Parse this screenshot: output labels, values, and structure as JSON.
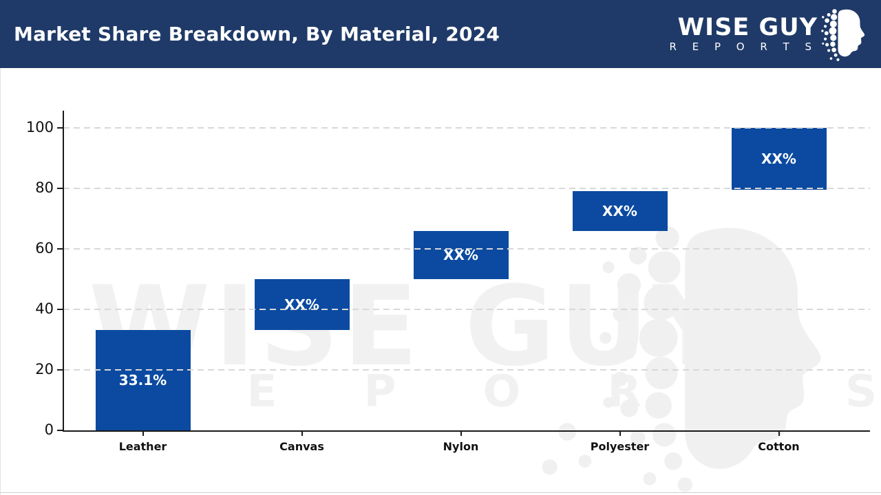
{
  "header": {
    "title": "Market Share Breakdown, By Material, 2024",
    "logo": {
      "name": "Wise Guy Reports",
      "line1": "WISE GUY",
      "line2": "R E P O R T S"
    }
  },
  "watermark": {
    "line1": "WISE GUY",
    "line2": "R E P O R T S"
  },
  "colors": {
    "header_bg": "#1f3a68",
    "bar": "#0b4aa0",
    "grid": "#d8d8d8",
    "axis": "#111111",
    "bar_label": "#ffffff",
    "watermark": "#f1f1f1"
  },
  "chart_data": {
    "type": "bar",
    "subtype": "waterfall",
    "title": "Market Share Breakdown, By Material, 2024",
    "categories": [
      "Leather",
      "Canvas",
      "Nylon",
      "Polyester",
      "Cotton"
    ],
    "segments": [
      {
        "category": "Leather",
        "start": 0,
        "end": 33.1,
        "label": "33.1%"
      },
      {
        "category": "Canvas",
        "start": 33.1,
        "end": 50,
        "label": "XX%"
      },
      {
        "category": "Nylon",
        "start": 50,
        "end": 66,
        "label": "XX%"
      },
      {
        "category": "Polyester",
        "start": 66,
        "end": 79,
        "label": "XX%"
      },
      {
        "category": "Cotton",
        "start": 79.5,
        "end": 100,
        "label": "XX%"
      }
    ],
    "ylim": [
      0,
      100
    ],
    "yticks": [
      0,
      20,
      40,
      60,
      80,
      100
    ],
    "xlabel": "",
    "ylabel": "",
    "grid": "horizontal-dashed",
    "legend": "none",
    "bar_color": "#0b4aa0"
  }
}
